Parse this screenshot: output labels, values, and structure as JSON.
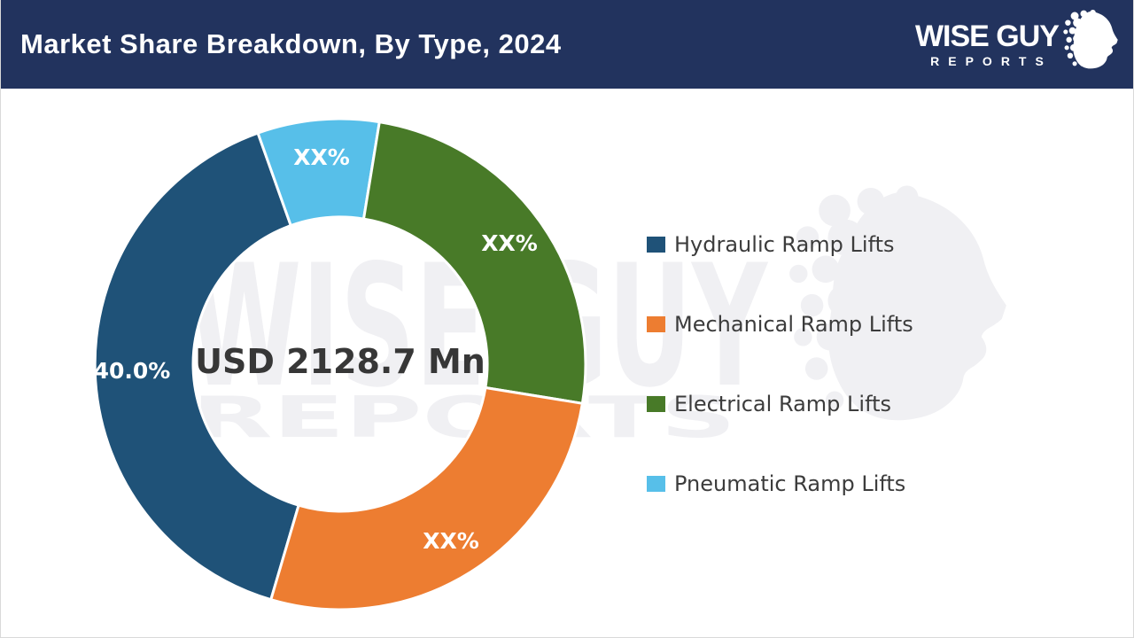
{
  "header": {
    "title": "Market Share Breakdown, By Type, 2024",
    "logo": {
      "line1": "WISE GUY",
      "line2": "REPORTS"
    }
  },
  "watermark": {
    "line1": "WISE GUY",
    "line2": "REPORTS"
  },
  "colors": {
    "header_bg": "#22335e",
    "page_bg": "#ffffff",
    "watermark": "#f0f0f3",
    "center_text": "#373737",
    "legend_text": "#3c3c3c",
    "slice_separator": "#ffffff"
  },
  "chart_data": {
    "type": "donut",
    "title": "Market Share Breakdown, By Type, 2024",
    "center_label": "USD 2128.7 Mn",
    "total_value_usd_mn": 2128.7,
    "start_angle_deg": 196.4,
    "inner_radius_ratio": 0.6,
    "legend_position": "right",
    "slices": [
      {
        "name": "Hydraulic Ramp Lifts",
        "label": "40.0%",
        "value_pct": 40.0,
        "color": "#1f5278"
      },
      {
        "name": "Pneumatic Ramp Lifts",
        "label": "XX%",
        "value_pct": 8.0,
        "color": "#57bfe9"
      },
      {
        "name": "Electrical Ramp Lifts",
        "label": "XX%",
        "value_pct": 25.0,
        "color": "#487a28"
      },
      {
        "name": "Mechanical Ramp Lifts",
        "label": "XX%",
        "value_pct": 27.0,
        "color": "#ed7d31"
      }
    ],
    "legend": [
      {
        "label": "Hydraulic Ramp Lifts",
        "color": "#1f5278"
      },
      {
        "label": "Mechanical Ramp Lifts",
        "color": "#ed7d31"
      },
      {
        "label": "Electrical Ramp Lifts",
        "color": "#487a28"
      },
      {
        "label": "Pneumatic Ramp Lifts",
        "color": "#57bfe9"
      }
    ]
  }
}
